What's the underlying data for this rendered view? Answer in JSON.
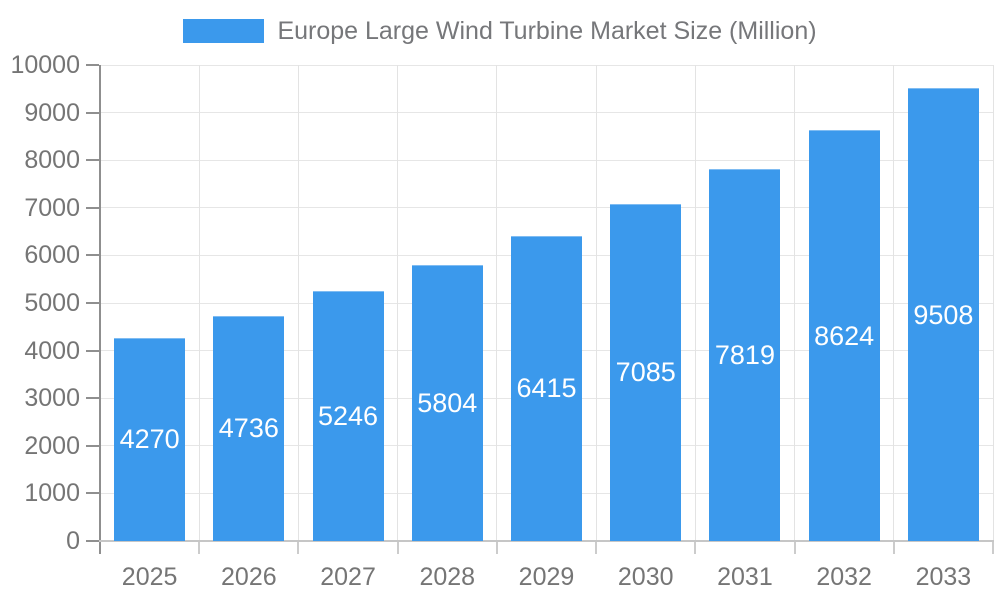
{
  "legend": {
    "label": "Europe Large Wind Turbine Market Size (Million)",
    "swatch_color": "#3B99EC"
  },
  "chart_data": {
    "type": "bar",
    "title": "Europe Large Wind Turbine Market Size (Million)",
    "categories": [
      "2025",
      "2026",
      "2027",
      "2028",
      "2029",
      "2030",
      "2031",
      "2032",
      "2033"
    ],
    "values": [
      4270,
      4736,
      5246,
      5804,
      6415,
      7085,
      7819,
      8624,
      9508
    ],
    "xlabel": "",
    "ylabel": "",
    "ylim": [
      0,
      10000
    ],
    "ytick_step": 1000,
    "yticks": [
      0,
      1000,
      2000,
      3000,
      4000,
      5000,
      6000,
      7000,
      8000,
      9000,
      10000
    ],
    "grid": true,
    "legend_position": "top",
    "bar_color": "#3B99EC",
    "value_label_color": "#FFFFFF",
    "axis_label_color": "#757575",
    "title_color": "#76777A"
  }
}
